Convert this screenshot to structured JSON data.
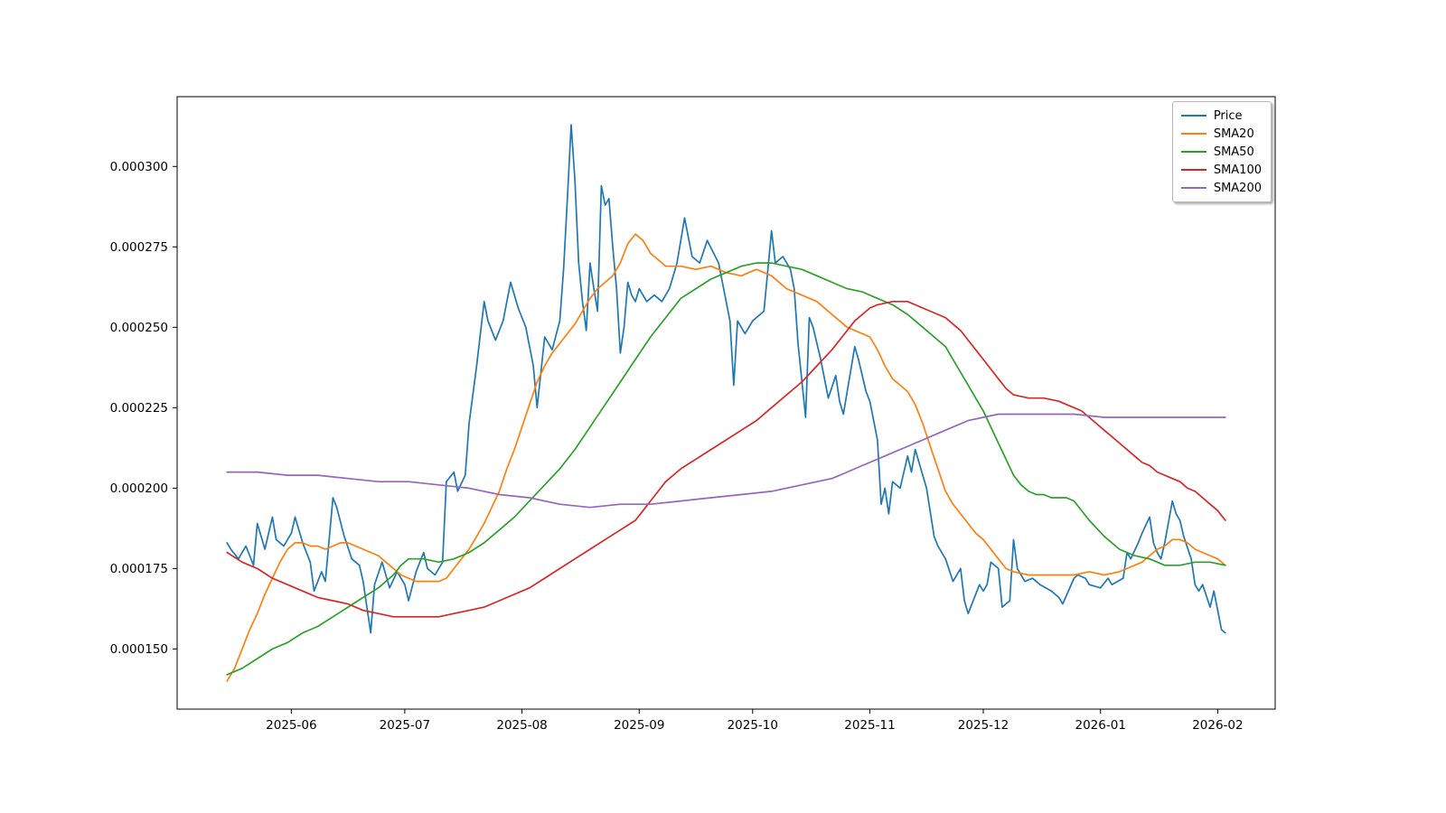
{
  "figure": {
    "background": "#ffffff",
    "spine_color": "#000000",
    "tick_label_color": "#000000"
  },
  "chart_data": {
    "type": "line",
    "title": "",
    "xlabel": "",
    "ylabel": "",
    "grid": false,
    "legend_position": "upper right",
    "x_unit": "days since 2025-05-15",
    "xlim": [
      -13.2,
      277.2
    ],
    "ylim": [
      0.0001313,
      0.0003217
    ],
    "x_ticks": [
      {
        "pos": 17,
        "label": "2025-06"
      },
      {
        "pos": 47,
        "label": "2025-07"
      },
      {
        "pos": 78,
        "label": "2025-08"
      },
      {
        "pos": 109,
        "label": "2025-09"
      },
      {
        "pos": 139,
        "label": "2025-10"
      },
      {
        "pos": 170,
        "label": "2025-11"
      },
      {
        "pos": 200,
        "label": "2025-12"
      },
      {
        "pos": 231,
        "label": "2026-01"
      },
      {
        "pos": 262,
        "label": "2026-02"
      }
    ],
    "y_ticks": [
      {
        "pos": 0.00015,
        "label": "0.000150"
      },
      {
        "pos": 0.000175,
        "label": "0.000175"
      },
      {
        "pos": 0.0002,
        "label": "0.000200"
      },
      {
        "pos": 0.000225,
        "label": "0.000225"
      },
      {
        "pos": 0.00025,
        "label": "0.000250"
      },
      {
        "pos": 0.000275,
        "label": "0.000275"
      },
      {
        "pos": 0.0003,
        "label": "0.000300"
      }
    ],
    "series": [
      {
        "name": "Price",
        "color": "#1f77b4",
        "x": [
          0,
          1,
          3,
          5,
          7,
          8,
          10,
          12,
          13,
          15,
          17,
          18,
          20,
          22,
          23,
          25,
          26,
          28,
          29,
          31,
          33,
          35,
          36,
          38,
          39,
          41,
          43,
          45,
          47,
          48,
          50,
          52,
          53,
          55,
          57,
          58,
          60,
          61,
          63,
          64,
          66,
          68,
          69,
          71,
          73,
          75,
          77,
          79,
          81,
          82,
          84,
          86,
          88,
          89,
          90,
          91,
          92,
          93,
          94,
          95,
          96,
          97,
          98,
          99,
          100,
          101,
          102,
          103,
          104,
          105,
          106,
          107,
          108,
          109,
          111,
          113,
          115,
          117,
          119,
          121,
          123,
          125,
          127,
          130,
          133,
          134,
          135,
          137,
          139,
          142,
          144,
          145,
          147,
          149,
          150,
          151,
          153,
          154,
          155,
          157,
          159,
          161,
          162,
          163,
          166,
          167,
          169,
          170,
          172,
          173,
          174,
          175,
          176,
          178,
          180,
          181,
          182,
          185,
          187,
          188,
          190,
          192,
          194,
          195,
          196,
          199,
          200,
          201,
          202,
          204,
          205,
          207,
          208,
          209,
          211,
          213,
          215,
          218,
          220,
          221,
          224,
          225,
          227,
          228,
          231,
          233,
          234,
          237,
          238,
          239,
          241,
          242,
          244,
          245,
          246,
          247,
          248,
          250,
          251,
          252,
          253,
          255,
          256,
          257,
          258,
          260,
          261,
          262,
          263,
          264
        ],
        "y": [
          0.000183,
          0.000181,
          0.000178,
          0.000182,
          0.000176,
          0.000189,
          0.000181,
          0.000191,
          0.000184,
          0.000182,
          0.000186,
          0.000191,
          0.000183,
          0.000177,
          0.000168,
          0.000174,
          0.000171,
          0.000197,
          0.000194,
          0.000185,
          0.000178,
          0.000176,
          0.000171,
          0.000155,
          0.00017,
          0.000177,
          0.000169,
          0.000174,
          0.00017,
          0.000165,
          0.000174,
          0.00018,
          0.000175,
          0.000173,
          0.000177,
          0.000202,
          0.000205,
          0.000199,
          0.000204,
          0.00022,
          0.000238,
          0.000258,
          0.000252,
          0.000246,
          0.000252,
          0.000264,
          0.000256,
          0.00025,
          0.000238,
          0.000225,
          0.000247,
          0.000243,
          0.000252,
          0.000268,
          0.00029,
          0.000313,
          0.000296,
          0.00027,
          0.000258,
          0.000249,
          0.00027,
          0.000262,
          0.000255,
          0.000294,
          0.000288,
          0.00029,
          0.000275,
          0.000262,
          0.000242,
          0.00025,
          0.000264,
          0.00026,
          0.000258,
          0.000262,
          0.000258,
          0.00026,
          0.000258,
          0.000262,
          0.00027,
          0.000284,
          0.000272,
          0.00027,
          0.000277,
          0.00027,
          0.000252,
          0.000232,
          0.000252,
          0.000248,
          0.000252,
          0.000255,
          0.00028,
          0.00027,
          0.000272,
          0.000268,
          0.000262,
          0.000245,
          0.000222,
          0.000253,
          0.00025,
          0.00024,
          0.000228,
          0.000235,
          0.000227,
          0.000223,
          0.000244,
          0.00024,
          0.00023,
          0.000227,
          0.000215,
          0.000195,
          0.0002,
          0.000192,
          0.000202,
          0.0002,
          0.00021,
          0.000205,
          0.000212,
          0.0002,
          0.000185,
          0.000182,
          0.000178,
          0.000171,
          0.000175,
          0.000165,
          0.000161,
          0.00017,
          0.000168,
          0.00017,
          0.000177,
          0.000175,
          0.000163,
          0.000165,
          0.000184,
          0.000175,
          0.000171,
          0.000172,
          0.00017,
          0.000168,
          0.000166,
          0.000164,
          0.000172,
          0.000173,
          0.000172,
          0.00017,
          0.000169,
          0.000172,
          0.00017,
          0.000172,
          0.00018,
          0.000178,
          0.000183,
          0.000186,
          0.000191,
          0.000183,
          0.00018,
          0.000178,
          0.000183,
          0.000196,
          0.000192,
          0.00019,
          0.000185,
          0.000178,
          0.00017,
          0.000168,
          0.00017,
          0.000163,
          0.000168,
          0.000162,
          0.000156,
          0.000155
        ]
      },
      {
        "name": "SMA20",
        "color": "#ff7f0e",
        "x": [
          0,
          2,
          4,
          6,
          8,
          10,
          12,
          14,
          16,
          18,
          20,
          22,
          24,
          26,
          28,
          30,
          32,
          34,
          36,
          38,
          40,
          42,
          44,
          46,
          48,
          50,
          52,
          54,
          56,
          58,
          60,
          62,
          64,
          66,
          68,
          70,
          72,
          74,
          76,
          78,
          80,
          82,
          84,
          86,
          88,
          90,
          92,
          94,
          96,
          98,
          100,
          102,
          104,
          106,
          108,
          110,
          112,
          114,
          116,
          120,
          124,
          128,
          132,
          136,
          140,
          144,
          148,
          152,
          156,
          160,
          164,
          168,
          170,
          172,
          174,
          176,
          178,
          180,
          182,
          184,
          186,
          188,
          190,
          192,
          194,
          196,
          198,
          200,
          202,
          204,
          206,
          208,
          212,
          216,
          220,
          224,
          228,
          232,
          236,
          240,
          242,
          244,
          246,
          248,
          250,
          252,
          254,
          256,
          258,
          260,
          262,
          264
        ],
        "y": [
          0.00014,
          0.000144,
          0.00015,
          0.000156,
          0.000161,
          0.000167,
          0.000172,
          0.000177,
          0.000181,
          0.000183,
          0.000183,
          0.000182,
          0.000182,
          0.000181,
          0.000182,
          0.000183,
          0.000183,
          0.000182,
          0.000181,
          0.00018,
          0.000179,
          0.000177,
          0.000175,
          0.000173,
          0.000172,
          0.000171,
          0.000171,
          0.000171,
          0.000171,
          0.000172,
          0.000175,
          0.000178,
          0.000181,
          0.000185,
          0.000189,
          0.000194,
          0.000199,
          0.000206,
          0.000212,
          0.000219,
          0.000226,
          0.000233,
          0.000238,
          0.000242,
          0.000245,
          0.000248,
          0.000251,
          0.000255,
          0.000259,
          0.000262,
          0.000264,
          0.000266,
          0.00027,
          0.000276,
          0.000279,
          0.000277,
          0.000273,
          0.000271,
          0.000269,
          0.000269,
          0.000268,
          0.000269,
          0.000267,
          0.000266,
          0.000268,
          0.000266,
          0.000262,
          0.00026,
          0.000258,
          0.000254,
          0.00025,
          0.000248,
          0.000247,
          0.000243,
          0.000238,
          0.000234,
          0.000232,
          0.00023,
          0.000226,
          0.00022,
          0.000213,
          0.000206,
          0.000199,
          0.000195,
          0.000192,
          0.000189,
          0.000186,
          0.000184,
          0.000181,
          0.000178,
          0.000175,
          0.000174,
          0.000173,
          0.000173,
          0.000173,
          0.000173,
          0.000174,
          0.000173,
          0.000174,
          0.000176,
          0.000177,
          0.000179,
          0.000181,
          0.000182,
          0.000184,
          0.000184,
          0.000183,
          0.000181,
          0.00018,
          0.000179,
          0.000178,
          0.000176
        ]
      },
      {
        "name": "SMA50",
        "color": "#2ca02c",
        "x": [
          0,
          4,
          8,
          12,
          16,
          20,
          24,
          28,
          32,
          36,
          40,
          44,
          46,
          48,
          52,
          56,
          60,
          64,
          68,
          72,
          76,
          80,
          84,
          88,
          92,
          96,
          100,
          104,
          108,
          112,
          116,
          120,
          124,
          128,
          132,
          136,
          140,
          144,
          148,
          152,
          156,
          160,
          164,
          168,
          172,
          176,
          180,
          182,
          184,
          186,
          188,
          190,
          192,
          194,
          196,
          198,
          200,
          202,
          204,
          206,
          208,
          210,
          212,
          214,
          216,
          218,
          220,
          222,
          224,
          228,
          232,
          236,
          240,
          244,
          248,
          252,
          256,
          260,
          264
        ],
        "y": [
          0.000142,
          0.000144,
          0.000147,
          0.00015,
          0.000152,
          0.000155,
          0.000157,
          0.00016,
          0.000163,
          0.000166,
          0.000169,
          0.000173,
          0.000176,
          0.000178,
          0.000178,
          0.000177,
          0.000178,
          0.00018,
          0.000183,
          0.000187,
          0.000191,
          0.000196,
          0.000201,
          0.000206,
          0.000212,
          0.000219,
          0.000226,
          0.000233,
          0.00024,
          0.000247,
          0.000253,
          0.000259,
          0.000262,
          0.000265,
          0.000267,
          0.000269,
          0.00027,
          0.00027,
          0.000269,
          0.000268,
          0.000266,
          0.000264,
          0.000262,
          0.000261,
          0.000259,
          0.000257,
          0.000254,
          0.000252,
          0.00025,
          0.000248,
          0.000246,
          0.000244,
          0.00024,
          0.000236,
          0.000232,
          0.000228,
          0.000224,
          0.000219,
          0.000214,
          0.000209,
          0.000204,
          0.000201,
          0.000199,
          0.000198,
          0.000198,
          0.000197,
          0.000197,
          0.000197,
          0.000196,
          0.00019,
          0.000185,
          0.000181,
          0.000179,
          0.000178,
          0.000176,
          0.000176,
          0.000177,
          0.000177,
          0.000176
        ]
      },
      {
        "name": "SMA100",
        "color": "#d62728",
        "x": [
          0,
          4,
          8,
          12,
          16,
          20,
          24,
          28,
          32,
          36,
          40,
          44,
          48,
          52,
          56,
          60,
          64,
          68,
          72,
          76,
          80,
          84,
          88,
          92,
          96,
          100,
          104,
          108,
          110,
          112,
          114,
          116,
          118,
          120,
          124,
          128,
          132,
          136,
          140,
          144,
          148,
          152,
          156,
          160,
          164,
          166,
          168,
          170,
          172,
          176,
          180,
          182,
          184,
          186,
          188,
          190,
          192,
          194,
          196,
          198,
          200,
          202,
          204,
          206,
          208,
          212,
          216,
          220,
          222,
          224,
          226,
          228,
          230,
          232,
          234,
          236,
          238,
          240,
          242,
          244,
          246,
          248,
          250,
          252,
          254,
          256,
          258,
          260,
          262,
          264
        ],
        "y": [
          0.00018,
          0.000177,
          0.000175,
          0.000172,
          0.00017,
          0.000168,
          0.000166,
          0.000165,
          0.000164,
          0.000162,
          0.000161,
          0.00016,
          0.00016,
          0.00016,
          0.00016,
          0.000161,
          0.000162,
          0.000163,
          0.000165,
          0.000167,
          0.000169,
          0.000172,
          0.000175,
          0.000178,
          0.000181,
          0.000184,
          0.000187,
          0.00019,
          0.000193,
          0.000196,
          0.000199,
          0.000202,
          0.000204,
          0.000206,
          0.000209,
          0.000212,
          0.000215,
          0.000218,
          0.000221,
          0.000225,
          0.000229,
          0.000233,
          0.000238,
          0.000243,
          0.000249,
          0.000252,
          0.000254,
          0.000256,
          0.000257,
          0.000258,
          0.000258,
          0.000257,
          0.000256,
          0.000255,
          0.000254,
          0.000253,
          0.000251,
          0.000249,
          0.000246,
          0.000243,
          0.00024,
          0.000237,
          0.000234,
          0.000231,
          0.000229,
          0.000228,
          0.000228,
          0.000227,
          0.000226,
          0.000225,
          0.000224,
          0.000222,
          0.00022,
          0.000218,
          0.000216,
          0.000214,
          0.000212,
          0.00021,
          0.000208,
          0.000207,
          0.000205,
          0.000204,
          0.000203,
          0.000202,
          0.0002,
          0.000199,
          0.000197,
          0.000195,
          0.000193,
          0.00019
        ]
      },
      {
        "name": "SMA200",
        "color": "#9467bd",
        "x": [
          0,
          8,
          16,
          24,
          32,
          40,
          48,
          56,
          64,
          72,
          80,
          88,
          96,
          104,
          112,
          120,
          128,
          136,
          144,
          152,
          160,
          164,
          168,
          172,
          176,
          180,
          184,
          188,
          192,
          196,
          200,
          204,
          208,
          216,
          224,
          232,
          240,
          248,
          256,
          260,
          264
        ],
        "y": [
          0.000205,
          0.000205,
          0.000204,
          0.000204,
          0.000203,
          0.000202,
          0.000202,
          0.000201,
          0.0002,
          0.000198,
          0.000197,
          0.000195,
          0.000194,
          0.000195,
          0.000195,
          0.000196,
          0.000197,
          0.000198,
          0.000199,
          0.000201,
          0.000203,
          0.000205,
          0.000207,
          0.000209,
          0.000211,
          0.000213,
          0.000215,
          0.000217,
          0.000219,
          0.000221,
          0.000222,
          0.000223,
          0.000223,
          0.000223,
          0.000223,
          0.000222,
          0.000222,
          0.000222,
          0.000222,
          0.000222,
          0.000222
        ]
      }
    ],
    "legend_entries": [
      "Price",
      "SMA20",
      "SMA50",
      "SMA100",
      "SMA200"
    ]
  }
}
